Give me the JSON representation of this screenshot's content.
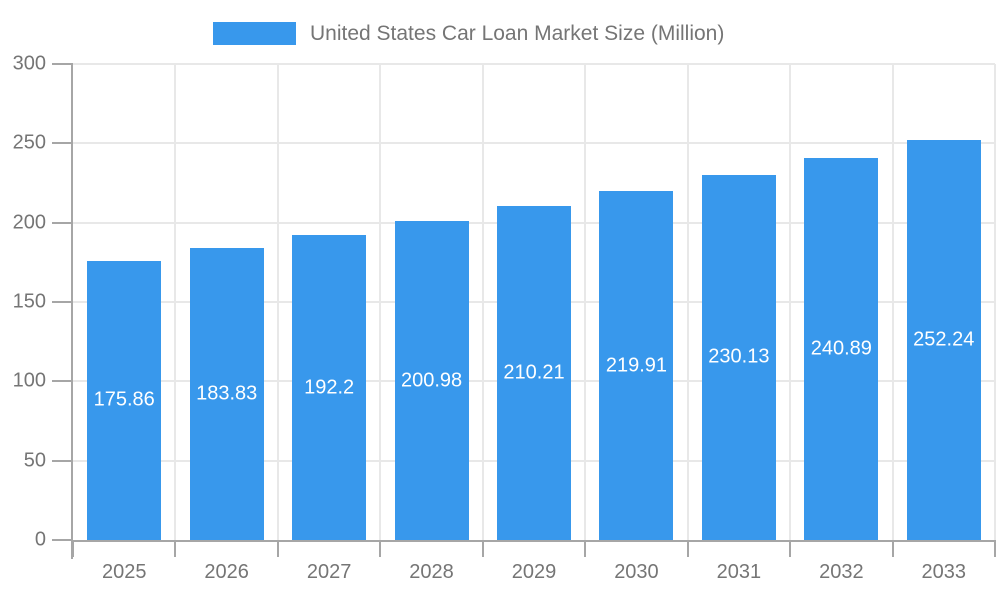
{
  "chart_data": {
    "type": "bar",
    "title": "United States Car Loan Market Size (Million)",
    "legend_position": "top",
    "legend": [
      {
        "label": "United States Car Loan Market Size (Million)",
        "color": "#3898EC"
      }
    ],
    "categories": [
      "2025",
      "2026",
      "2027",
      "2028",
      "2029",
      "2030",
      "2031",
      "2032",
      "2033"
    ],
    "values": [
      175.86,
      183.83,
      192.2,
      200.98,
      210.21,
      219.91,
      230.13,
      240.89,
      252.24
    ],
    "value_labels": [
      "175.86",
      "183.83",
      "192.2",
      "200.98",
      "210.21",
      "219.91",
      "230.13",
      "240.89",
      "252.24"
    ],
    "xlabel": "",
    "ylabel": "",
    "ylim": [
      0,
      300
    ],
    "yticks": [
      0,
      50,
      100,
      150,
      200,
      250,
      300
    ],
    "grid": true,
    "colors": {
      "bar": "#3898EC",
      "bar_label": "#FFFFFF",
      "axis": "#A6A6A6",
      "grid": "#E8E8E8",
      "text": "#757575"
    }
  }
}
